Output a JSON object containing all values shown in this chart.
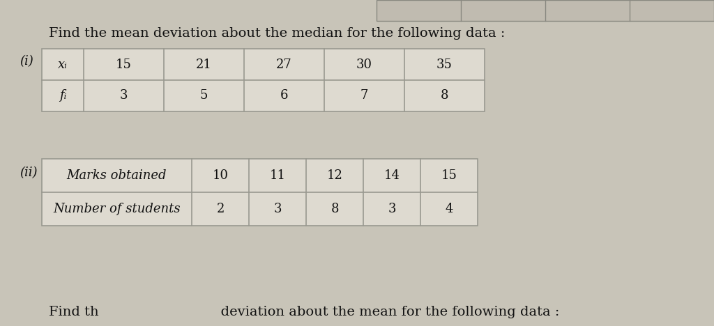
{
  "heading": "Find the mean deviation about the median for the following data :",
  "label_i": "(i)",
  "label_ii": "(ii)",
  "table1_row1_header": "xᵢ",
  "table1_row1_values": [
    "15",
    "21",
    "27",
    "30",
    "35"
  ],
  "table1_row2_header": "fᵢ",
  "table1_row2_values": [
    "3",
    "5",
    "6",
    "7",
    "8"
  ],
  "table2_row1_header": "Marks obtained",
  "table2_row1_values": [
    "10",
    "11",
    "12",
    "14",
    "15"
  ],
  "table2_row2_header": "Number of students",
  "table2_row2_values": [
    "2",
    "3",
    "8",
    "3",
    "4"
  ],
  "bg_color": "#c8c4b8",
  "table_bg": "#dedad0",
  "border_color": "#999990",
  "heading_color": "#111111",
  "text_color": "#111111",
  "label_color": "#111111",
  "bottom_text": "Find th                            deviation about the mean for the following data :",
  "heading_fontsize": 14,
  "label_fontsize": 13,
  "cell_fontsize": 13,
  "top_table_color": "#c0bbb0",
  "top_table_border": "#888880"
}
